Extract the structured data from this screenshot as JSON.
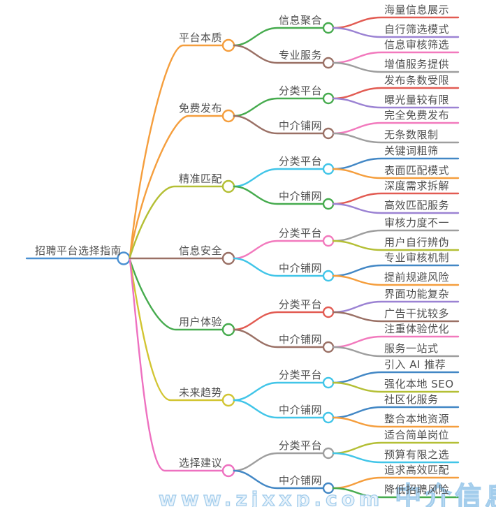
{
  "root": {
    "label": "招聘平台选择指南",
    "color": "#4a90d2"
  },
  "watermark": {
    "url_text": "www.zjxxp.com",
    "site_text": "中介信息铺网",
    "color": "#a3cdec"
  },
  "branches": [
    {
      "label": "平台本质",
      "color": "#f59e3d",
      "children": [
        {
          "label": "信息聚合",
          "color": "#46ab4e",
          "leaves": [
            {
              "text": "海量信息展示",
              "color": "#e25b52"
            },
            {
              "text": "自行筛选模式",
              "color": "#9b82d3"
            }
          ]
        },
        {
          "label": "专业服务",
          "color": "#9a7065",
          "leaves": [
            {
              "text": "信息审核筛选",
              "color": "#f279bd"
            },
            {
              "text": "增值服务提供",
              "color": "#9e9e9e"
            }
          ]
        }
      ]
    },
    {
      "label": "免费发布",
      "color": "#f59e3d",
      "children": [
        {
          "label": "分类平台",
          "color": "#46ab4e",
          "leaves": [
            {
              "text": "发布条数受限",
              "color": "#e25b52"
            },
            {
              "text": "曝光量较有限",
              "color": "#9b82d3"
            }
          ]
        },
        {
          "label": "中介铺网",
          "color": "#9a7065",
          "leaves": [
            {
              "text": "完全免费发布",
              "color": "#f279bd"
            },
            {
              "text": "无条数限制",
              "color": "#9e9e9e"
            }
          ]
        }
      ]
    },
    {
      "label": "精准匹配",
      "color": "#b4bf35",
      "children": [
        {
          "label": "分类平台",
          "color": "#41c5e8",
          "leaves": [
            {
              "text": "关键词粗筛",
              "color": "#4287c5"
            },
            {
              "text": "表面匹配模式",
              "color": "#f59e3d"
            }
          ]
        },
        {
          "label": "中介铺网",
          "color": "#46ab4e",
          "leaves": [
            {
              "text": "深度需求拆解",
              "color": "#e25b52"
            },
            {
              "text": "高效匹配服务",
              "color": "#9b82d3"
            }
          ]
        }
      ]
    },
    {
      "label": "信息安全",
      "color": "#9a7065",
      "children": [
        {
          "label": "分类平台",
          "color": "#f279bd",
          "leaves": [
            {
              "text": "审核力度不一",
              "color": "#9e9e9e"
            },
            {
              "text": "用户自行辨伪",
              "color": "#b4bf35"
            }
          ]
        },
        {
          "label": "中介铺网",
          "color": "#41c5e8",
          "leaves": [
            {
              "text": "专业审核机制",
              "color": "#4287c5"
            },
            {
              "text": "提前规避风险",
              "color": "#f59e3d"
            }
          ]
        }
      ]
    },
    {
      "label": "用户体验",
      "color": "#46ab4e",
      "children": [
        {
          "label": "分类平台",
          "color": "#e25b52",
          "leaves": [
            {
              "text": "界面功能复杂",
              "color": "#9b82d3"
            },
            {
              "text": "广告干扰较多",
              "color": "#9a7065"
            }
          ]
        },
        {
          "label": "中介铺网",
          "color": "#9a7065",
          "leaves": [
            {
              "text": "注重体验优化",
              "color": "#f279bd"
            },
            {
              "text": "服务一站式",
              "color": "#9e9e9e"
            }
          ]
        }
      ]
    },
    {
      "label": "未来趋势",
      "color": "#d2c532",
      "children": [
        {
          "label": "分类平台",
          "color": "#41c5e8",
          "leaves": [
            {
              "text": "引入 AI 推荐",
              "color": "#4287c5"
            },
            {
              "text": "强化本地 SEO",
              "color": "#b4bf35"
            }
          ]
        },
        {
          "label": "中介铺网",
          "color": "#41c5e8",
          "leaves": [
            {
              "text": "社区化服务",
              "color": "#4287c5"
            },
            {
              "text": "整合本地资源",
              "color": "#f59e3d"
            }
          ]
        }
      ]
    },
    {
      "label": "选择建议",
      "color": "#ee71c0",
      "children": [
        {
          "label": "分类平台",
          "color": "#9e9e9e",
          "leaves": [
            {
              "text": "适合简单岗位",
              "color": "#b4bf35"
            },
            {
              "text": "预算有限之选",
              "color": "#41c5e8"
            }
          ]
        },
        {
          "label": "中介铺网",
          "color": "#4287c5",
          "leaves": [
            {
              "text": "追求高效匹配",
              "color": "#f59e3d"
            },
            {
              "text": "降低招聘风险",
              "color": "#46ab4e"
            }
          ]
        }
      ]
    }
  ]
}
